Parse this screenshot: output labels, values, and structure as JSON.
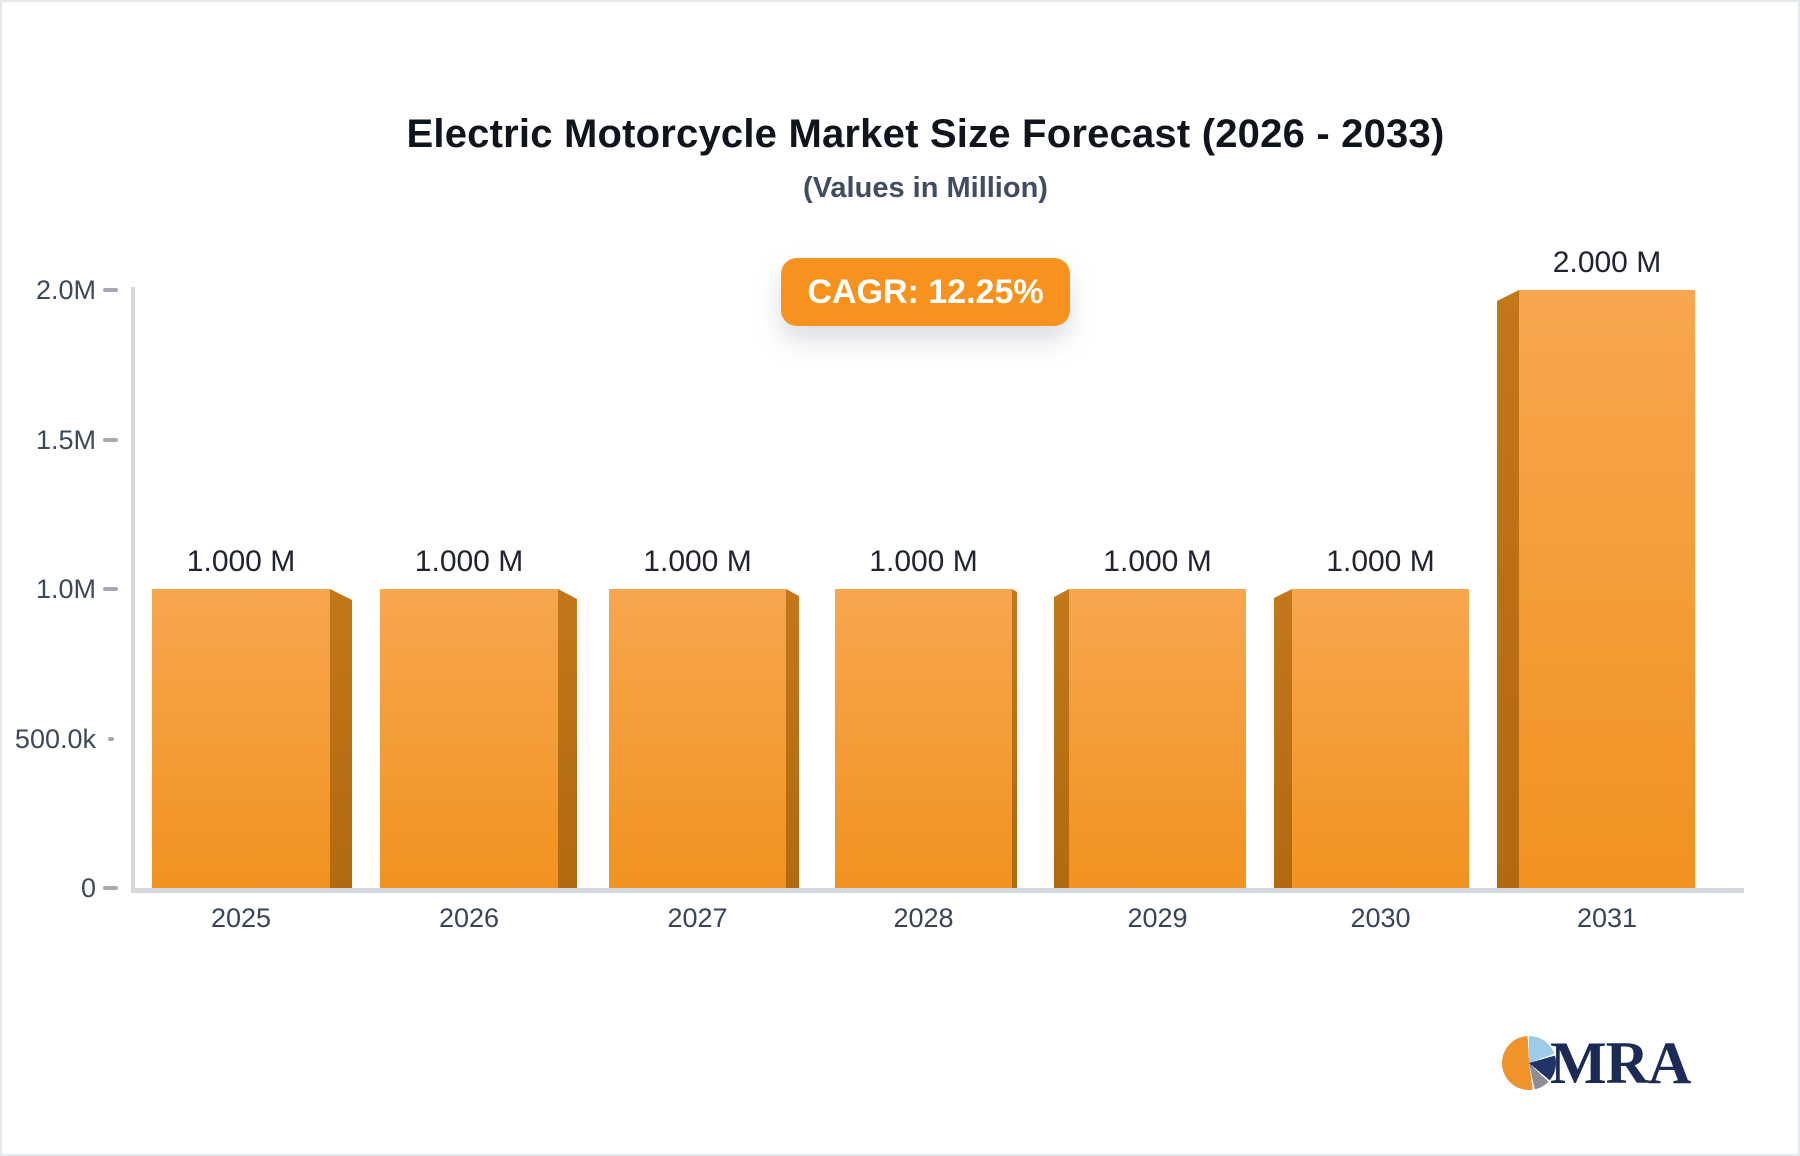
{
  "header": {
    "title": "Electric Motorcycle Market Size Forecast (2026 - 2033)",
    "subtitle": "(Values in Million)",
    "cagr_label": "CAGR: 12.25%"
  },
  "chart_data": {
    "type": "bar",
    "title": "Electric Motorcycle Market Size Forecast (2026 - 2033)",
    "subtitle": "(Values in Million)",
    "unit": "Million",
    "categories": [
      "2025",
      "2026",
      "2027",
      "2028",
      "2029",
      "2030",
      "2031"
    ],
    "values": [
      1.0,
      1.0,
      1.0,
      1.0,
      1.0,
      1.0,
      2.0
    ],
    "value_labels": [
      "1.000 M",
      "1.000 M",
      "1.000 M",
      "1.000 M",
      "1.000 M",
      "1.000 M",
      "2.000 M"
    ],
    "annotation": "CAGR: 12.25%",
    "xlabel": "",
    "ylabel": "",
    "ylim": [
      0,
      2.0
    ],
    "y_ticks": [
      {
        "label": "2.0M",
        "value": 2.0
      },
      {
        "label": "1.5M",
        "value": 1.5
      },
      {
        "label": "1.0M",
        "value": 1.0
      },
      {
        "label": "500.0k",
        "value": 0.5
      },
      {
        "label": "0",
        "value": 0.0
      }
    ],
    "grid": false,
    "legend_position": "none",
    "bar_style": "3d-perspective"
  },
  "colors": {
    "bar_face_top": "#f7a74f",
    "bar_face_bottom": "#f2921f",
    "bar_side": "#b86f14",
    "badge_background": "#f6921d",
    "badge_text": "#ffffff",
    "axis_line": "#d5d8dd",
    "tick_text": "#3d4858",
    "title_text": "#10141c",
    "subtitle_text": "#3f4c61"
  },
  "logo": {
    "text": "MRA",
    "icon": "pie-chart-icon",
    "pie_colors": [
      "#f0932b",
      "#9fcbea",
      "#223368",
      "#8e8e98"
    ]
  }
}
